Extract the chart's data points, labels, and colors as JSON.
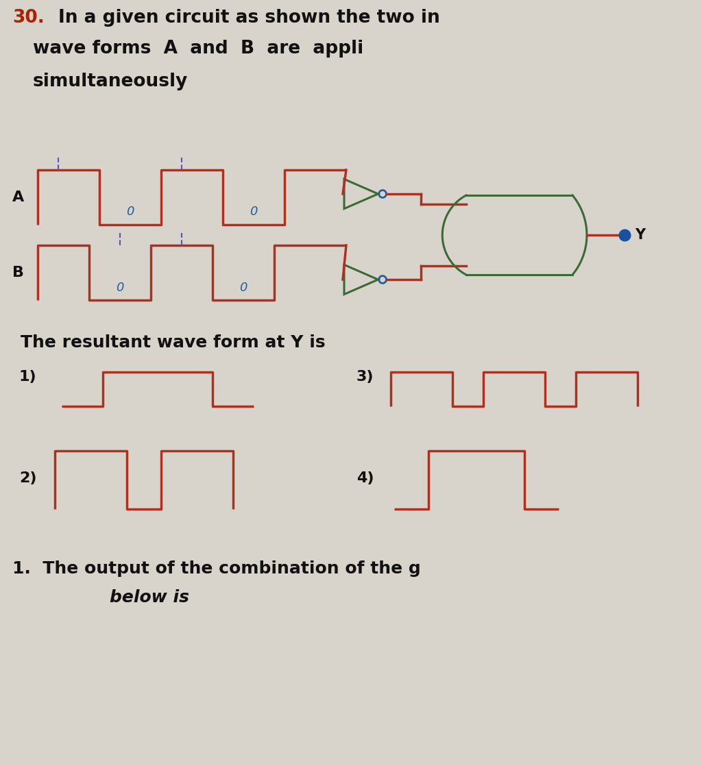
{
  "bg_color": "#d8d4cb",
  "waveform_color": "#b03020",
  "gate_color": "#3a6b35",
  "bubble_color": "#2060a0",
  "dot_color": "#1a50a0",
  "text_color": "#111111",
  "zero_color": "#2060a0",
  "tick_color": "#4444aa",
  "option_color": "#b03020",
  "number_color": "#b03020",
  "title_line1": "In a given circuit as shown the two in",
  "title_line2": "wave forms  A  and  B  are  appli",
  "title_line3": "simultaneously",
  "subtitle": "The resultant wave form at Y is",
  "bottom_text1": "1.  The output of the combination of the g",
  "bottom_text2": "below is",
  "label_A": "A",
  "label_B": "B",
  "label_Y": "Y",
  "q_num": "30.",
  "opt1": "1)",
  "opt2": "2)",
  "opt3": "3)",
  "opt4": "4)"
}
